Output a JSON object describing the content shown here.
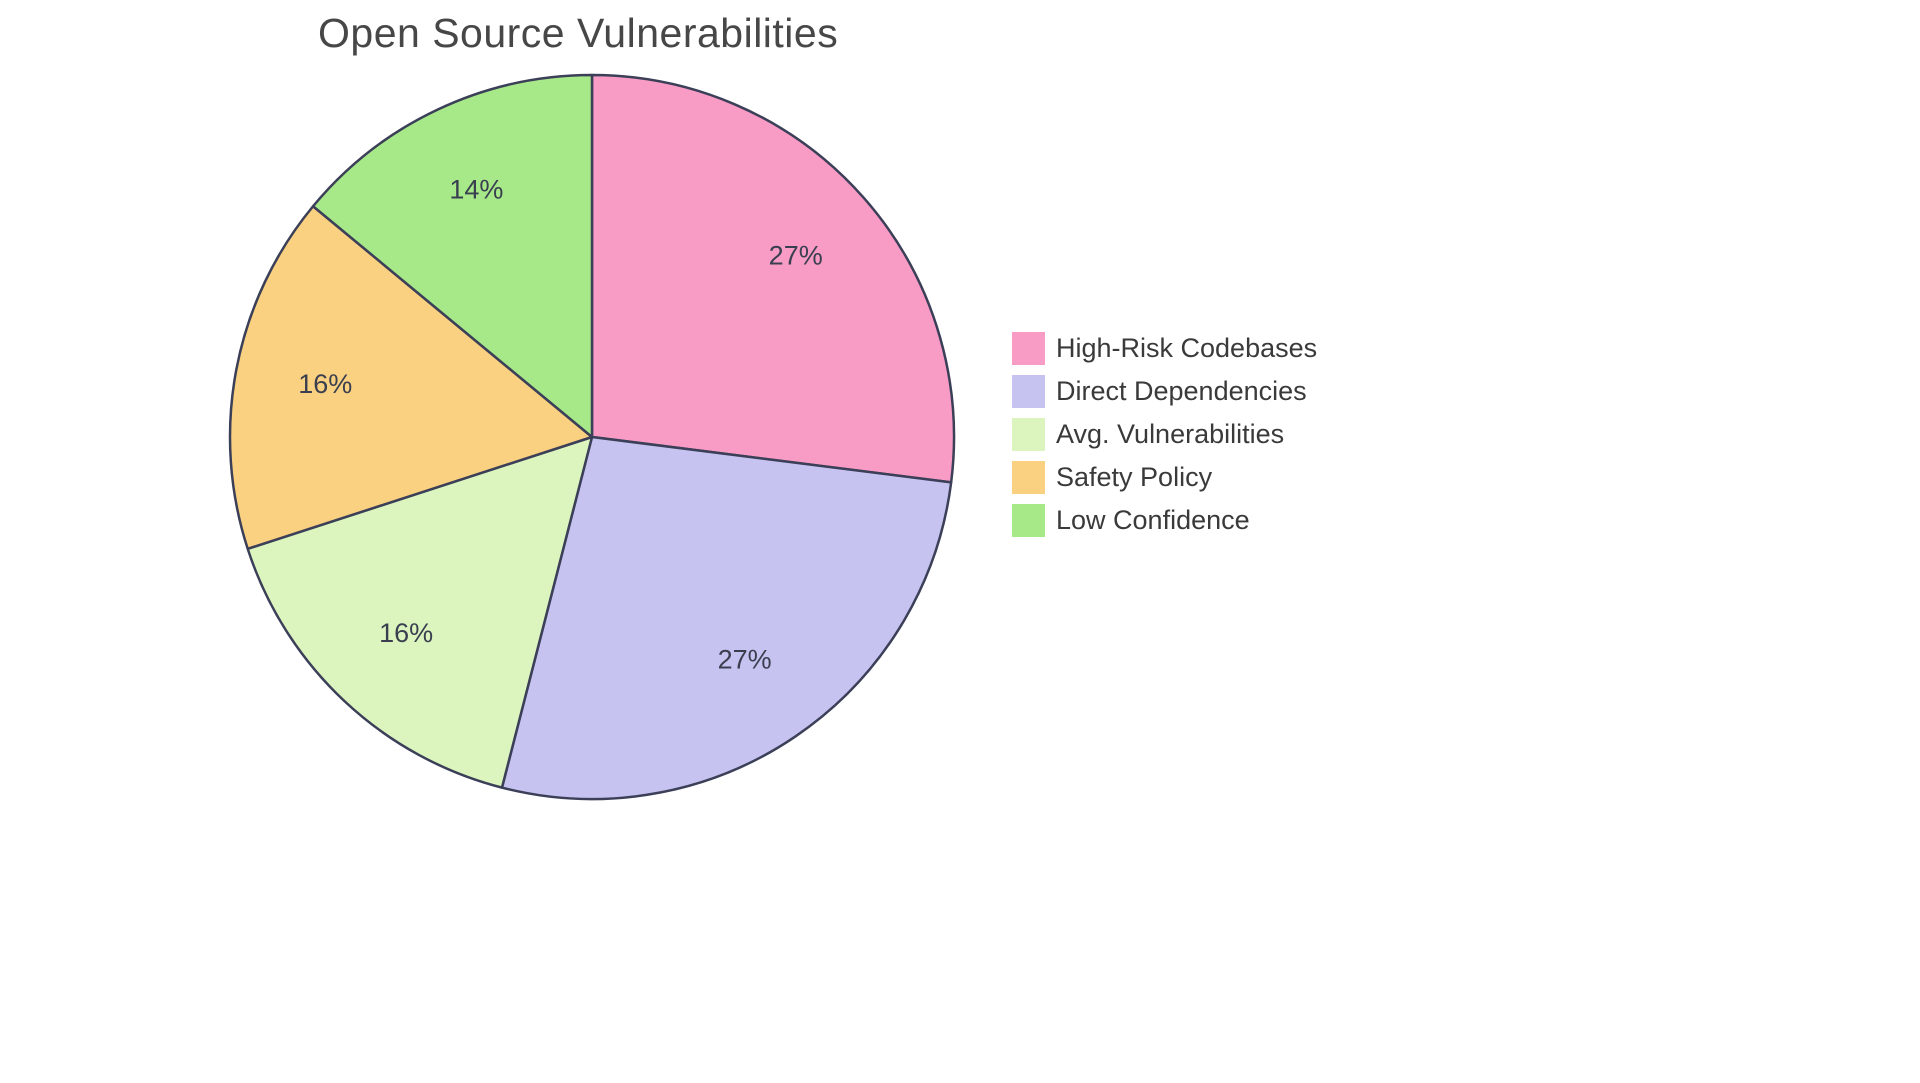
{
  "chart_data": {
    "type": "pie",
    "title": "Open Source Vulnerabilities",
    "direction": "clockwise",
    "start_angle_deg": 0,
    "legend_position": "right",
    "stroke_color": "#3b3f58",
    "label_color": "#3a3f50",
    "slices": [
      {
        "label": "High-Risk Codebases",
        "value": 27,
        "pct_label": "27%",
        "color": "#f89cc6"
      },
      {
        "label": "Direct Dependencies",
        "value": 27,
        "pct_label": "27%",
        "color": "#c7c3f1"
      },
      {
        "label": "Avg. Vulnerabilities",
        "value": 16,
        "pct_label": "16%",
        "color": "#dcf4be"
      },
      {
        "label": "Safety Policy",
        "value": 16,
        "pct_label": "16%",
        "color": "#fad180"
      },
      {
        "label": "Low Confidence",
        "value": 14,
        "pct_label": "14%",
        "color": "#a7e989"
      }
    ]
  }
}
